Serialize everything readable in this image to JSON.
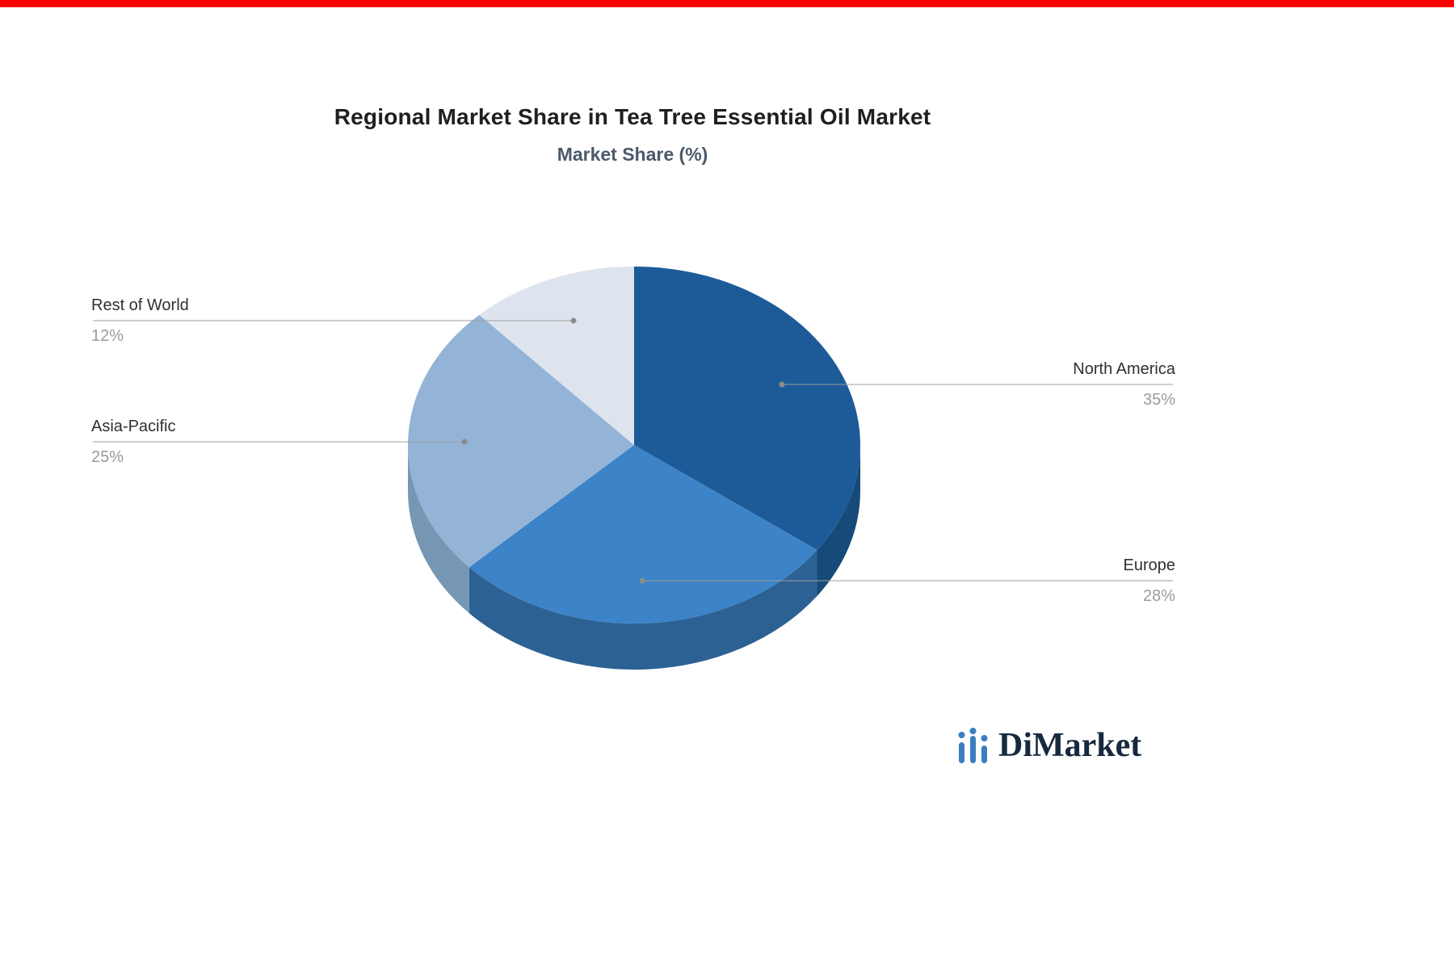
{
  "page": {
    "top_bar_color": "#fa0100",
    "background": "#ffffff"
  },
  "header": {
    "title": "Regional Market Share in Tea Tree Essential Oil Market",
    "subtitle": "Market Share (%)"
  },
  "chart_data": {
    "type": "pie",
    "title": "Regional Market Share in Tea Tree Essential Oil Market",
    "subtitle": "Market Share (%)",
    "unit": "%",
    "categories": [
      "North America",
      "Europe",
      "Asia-Pacific",
      "Rest of World"
    ],
    "values": [
      35,
      28,
      25,
      12
    ],
    "labels": [
      "35%",
      "28%",
      "25%",
      "12%"
    ],
    "colors": [
      "#1d5b98",
      "#3c83c7",
      "#93b4d7",
      "#dde4ee"
    ],
    "side_colors": [
      "#164a78",
      "#2c6194",
      "#7697b4",
      "#b9c3cf"
    ],
    "start_angle": 0,
    "direction": "clockwise",
    "effect": "3d",
    "legend": "none",
    "label_style": "callout-lines"
  },
  "branding": {
    "logo_text": "DiMarket",
    "logo_icon": "bar-chart-icon",
    "logo_color": "#17293e",
    "icon_color": "#3b7dc2"
  }
}
